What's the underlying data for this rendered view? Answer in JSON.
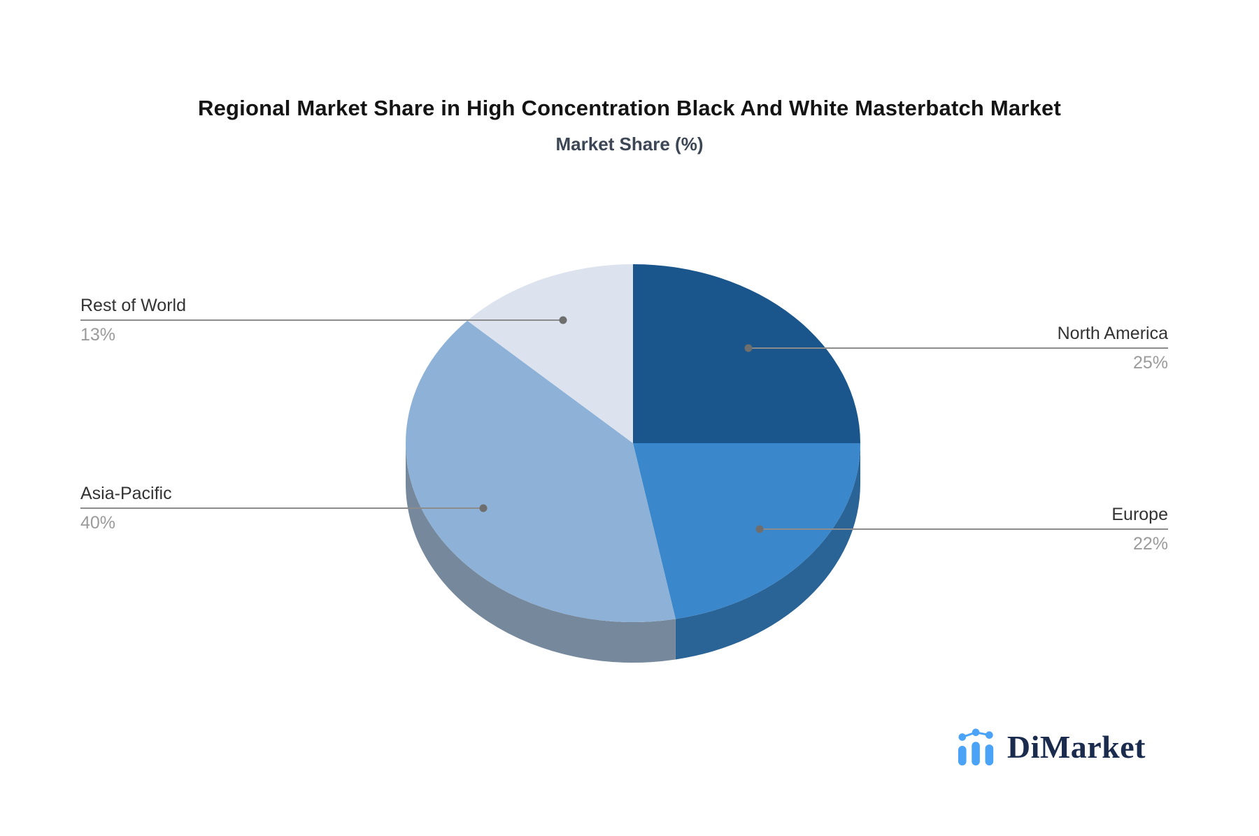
{
  "header": {
    "title": "Regional Market Share in High Concentration Black And White Masterbatch Market",
    "subtitle": "Market Share (%)"
  },
  "chart_data": {
    "type": "pie",
    "style": "3d",
    "title": "Regional Market Share in High Concentration Black And White Masterbatch Market",
    "subtitle": "Market Share (%)",
    "unit": "%",
    "direction": "clockwise",
    "start_angle_deg": 0,
    "slices": [
      {
        "label": "North America",
        "value": 25,
        "pct_label": "25%",
        "color": "#1A568C",
        "side_color": "#164A79"
      },
      {
        "label": "Europe",
        "value": 22,
        "pct_label": "22%",
        "color": "#3A87CB",
        "side_color": "#2A6396"
      },
      {
        "label": "Asia-Pacific",
        "value": 40,
        "pct_label": "40%",
        "color": "#8EB2D7",
        "side_color": "#76899C"
      },
      {
        "label": "Rest of World",
        "value": 13,
        "pct_label": "13%",
        "color": "#DCE3EF",
        "side_color": "#AEB9C9"
      }
    ],
    "leader_line_color": "#8C8C8C",
    "leader_dot_color": "#6E6E6E",
    "label_color": "#333333",
    "pct_color": "#9B9B9B",
    "legend": "none",
    "grid": "off"
  },
  "logo": {
    "text": "DiMarket",
    "icon": "bar-chart-trend-icon",
    "icon_color": "#4AA3F7",
    "text_color": "#1B2B4E"
  }
}
